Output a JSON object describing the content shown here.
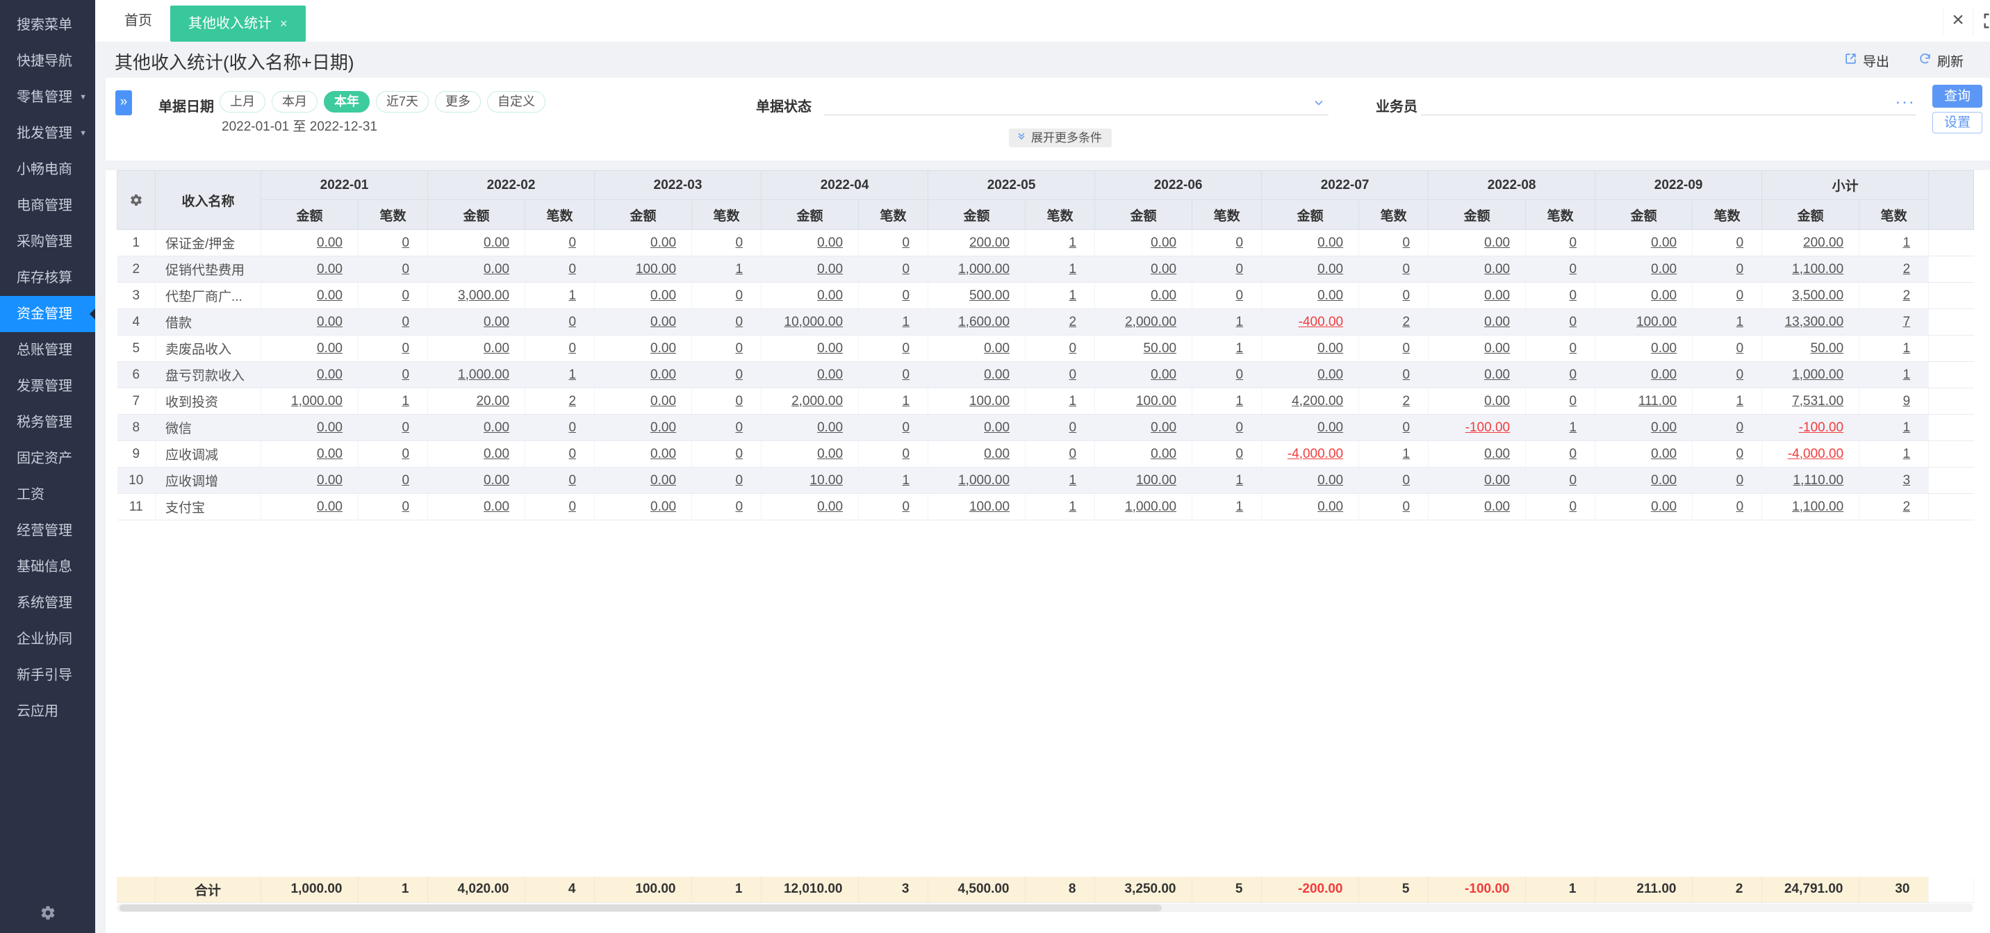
{
  "window": {
    "close_icon": "×"
  },
  "sidebar": {
    "caret_icon": "▼",
    "items": [
      {
        "label": "搜索菜单"
      },
      {
        "label": "快捷导航"
      },
      {
        "label": "零售管理",
        "caret": true
      },
      {
        "label": "批发管理",
        "caret": true
      },
      {
        "label": "小畅电商"
      },
      {
        "label": "电商管理"
      },
      {
        "label": "采购管理"
      },
      {
        "label": "库存核算"
      },
      {
        "label": "资金管理",
        "active": true
      },
      {
        "label": "总账管理"
      },
      {
        "label": "发票管理"
      },
      {
        "label": "税务管理"
      },
      {
        "label": "固定资产"
      },
      {
        "label": "工资"
      },
      {
        "label": "经营管理"
      },
      {
        "label": "基础信息"
      },
      {
        "label": "系统管理"
      },
      {
        "label": "企业协同"
      },
      {
        "label": "新手引导"
      },
      {
        "label": "云应用"
      }
    ]
  },
  "tabs": [
    {
      "label": "首页",
      "active": false,
      "closable": false
    },
    {
      "label": "其他收入统计",
      "active": true,
      "closable": true,
      "close_icon": "×"
    }
  ],
  "page": {
    "title": "其他收入统计(收入名称+日期)"
  },
  "toolbar": {
    "export_label": "导出",
    "refresh_label": "刷新"
  },
  "filters": {
    "collapse_icon": "»",
    "date_label": "单据日期",
    "date_options": [
      {
        "label": "上月"
      },
      {
        "label": "本月"
      },
      {
        "label": "本年",
        "active": true
      },
      {
        "label": "近7天"
      },
      {
        "label": "更多"
      },
      {
        "label": "自定义"
      }
    ],
    "date_from": "2022-01-01",
    "date_separator": "至",
    "date_to": "2022-12-31",
    "status_label": "单据状态",
    "salesman_label": "业务员",
    "ellipsis": "...",
    "query_button": "查询",
    "settings_button": "设置",
    "more_label": "展开更多条件"
  },
  "table": {
    "name_header": "收入名称",
    "groups": [
      "2022-01",
      "2022-02",
      "2022-03",
      "2022-04",
      "2022-05",
      "2022-06",
      "2022-07",
      "2022-08",
      "2022-09",
      "小计"
    ],
    "sub_headers": [
      "金额",
      "笔数"
    ],
    "rows": [
      {
        "no": "1",
        "name": "保证金/押金",
        "cells": [
          [
            "0.00",
            "0"
          ],
          [
            "0.00",
            "0"
          ],
          [
            "0.00",
            "0"
          ],
          [
            "0.00",
            "0"
          ],
          [
            "200.00",
            "1"
          ],
          [
            "0.00",
            "0"
          ],
          [
            "0.00",
            "0"
          ],
          [
            "0.00",
            "0"
          ],
          [
            "0.00",
            "0"
          ],
          [
            "200.00",
            "1"
          ]
        ]
      },
      {
        "no": "2",
        "name": "促销代垫费用",
        "cells": [
          [
            "0.00",
            "0"
          ],
          [
            "0.00",
            "0"
          ],
          [
            "100.00",
            "1"
          ],
          [
            "0.00",
            "0"
          ],
          [
            "1,000.00",
            "1"
          ],
          [
            "0.00",
            "0"
          ],
          [
            "0.00",
            "0"
          ],
          [
            "0.00",
            "0"
          ],
          [
            "0.00",
            "0"
          ],
          [
            "1,100.00",
            "2"
          ]
        ]
      },
      {
        "no": "3",
        "name": "代垫厂商广...",
        "cells": [
          [
            "0.00",
            "0"
          ],
          [
            "3,000.00",
            "1"
          ],
          [
            "0.00",
            "0"
          ],
          [
            "0.00",
            "0"
          ],
          [
            "500.00",
            "1"
          ],
          [
            "0.00",
            "0"
          ],
          [
            "0.00",
            "0"
          ],
          [
            "0.00",
            "0"
          ],
          [
            "0.00",
            "0"
          ],
          [
            "3,500.00",
            "2"
          ]
        ]
      },
      {
        "no": "4",
        "name": "借款",
        "cells": [
          [
            "0.00",
            "0"
          ],
          [
            "0.00",
            "0"
          ],
          [
            "0.00",
            "0"
          ],
          [
            "10,000.00",
            "1"
          ],
          [
            "1,600.00",
            "2"
          ],
          [
            "2,000.00",
            "1"
          ],
          [
            "-400.00",
            "2"
          ],
          [
            "0.00",
            "0"
          ],
          [
            "100.00",
            "1"
          ],
          [
            "13,300.00",
            "7"
          ]
        ]
      },
      {
        "no": "5",
        "name": "卖废品收入",
        "cells": [
          [
            "0.00",
            "0"
          ],
          [
            "0.00",
            "0"
          ],
          [
            "0.00",
            "0"
          ],
          [
            "0.00",
            "0"
          ],
          [
            "0.00",
            "0"
          ],
          [
            "50.00",
            "1"
          ],
          [
            "0.00",
            "0"
          ],
          [
            "0.00",
            "0"
          ],
          [
            "0.00",
            "0"
          ],
          [
            "50.00",
            "1"
          ]
        ]
      },
      {
        "no": "6",
        "name": "盘亏罚款收入",
        "cells": [
          [
            "0.00",
            "0"
          ],
          [
            "1,000.00",
            "1"
          ],
          [
            "0.00",
            "0"
          ],
          [
            "0.00",
            "0"
          ],
          [
            "0.00",
            "0"
          ],
          [
            "0.00",
            "0"
          ],
          [
            "0.00",
            "0"
          ],
          [
            "0.00",
            "0"
          ],
          [
            "0.00",
            "0"
          ],
          [
            "1,000.00",
            "1"
          ]
        ]
      },
      {
        "no": "7",
        "name": "收到投资",
        "cells": [
          [
            "1,000.00",
            "1"
          ],
          [
            "20.00",
            "2"
          ],
          [
            "0.00",
            "0"
          ],
          [
            "2,000.00",
            "1"
          ],
          [
            "100.00",
            "1"
          ],
          [
            "100.00",
            "1"
          ],
          [
            "4,200.00",
            "2"
          ],
          [
            "0.00",
            "0"
          ],
          [
            "111.00",
            "1"
          ],
          [
            "7,531.00",
            "9"
          ]
        ]
      },
      {
        "no": "8",
        "name": "微信",
        "cells": [
          [
            "0.00",
            "0"
          ],
          [
            "0.00",
            "0"
          ],
          [
            "0.00",
            "0"
          ],
          [
            "0.00",
            "0"
          ],
          [
            "0.00",
            "0"
          ],
          [
            "0.00",
            "0"
          ],
          [
            "0.00",
            "0"
          ],
          [
            "-100.00",
            "1"
          ],
          [
            "0.00",
            "0"
          ],
          [
            "-100.00",
            "1"
          ]
        ]
      },
      {
        "no": "9",
        "name": "应收调减",
        "cells": [
          [
            "0.00",
            "0"
          ],
          [
            "0.00",
            "0"
          ],
          [
            "0.00",
            "0"
          ],
          [
            "0.00",
            "0"
          ],
          [
            "0.00",
            "0"
          ],
          [
            "0.00",
            "0"
          ],
          [
            "-4,000.00",
            "1"
          ],
          [
            "0.00",
            "0"
          ],
          [
            "0.00",
            "0"
          ],
          [
            "-4,000.00",
            "1"
          ]
        ]
      },
      {
        "no": "10",
        "name": "应收调增",
        "cells": [
          [
            "0.00",
            "0"
          ],
          [
            "0.00",
            "0"
          ],
          [
            "0.00",
            "0"
          ],
          [
            "10.00",
            "1"
          ],
          [
            "1,000.00",
            "1"
          ],
          [
            "100.00",
            "1"
          ],
          [
            "0.00",
            "0"
          ],
          [
            "0.00",
            "0"
          ],
          [
            "0.00",
            "0"
          ],
          [
            "1,110.00",
            "3"
          ]
        ]
      },
      {
        "no": "11",
        "name": "支付宝",
        "cells": [
          [
            "0.00",
            "0"
          ],
          [
            "0.00",
            "0"
          ],
          [
            "0.00",
            "0"
          ],
          [
            "0.00",
            "0"
          ],
          [
            "100.00",
            "1"
          ],
          [
            "1,000.00",
            "1"
          ],
          [
            "0.00",
            "0"
          ],
          [
            "0.00",
            "0"
          ],
          [
            "0.00",
            "0"
          ],
          [
            "1,100.00",
            "2"
          ]
        ]
      }
    ],
    "footer": {
      "label": "合计",
      "cells": [
        [
          "1,000.00",
          "1"
        ],
        [
          "4,020.00",
          "4"
        ],
        [
          "100.00",
          "1"
        ],
        [
          "12,010.00",
          "3"
        ],
        [
          "4,500.00",
          "8"
        ],
        [
          "3,250.00",
          "5"
        ],
        [
          "-200.00",
          "5"
        ],
        [
          "-100.00",
          "1"
        ],
        [
          "211.00",
          "2"
        ],
        [
          "24,791.00",
          "30"
        ]
      ]
    }
  },
  "colors": {
    "sidebar_bg": "#2c3245",
    "sidebar_active": "#1890ff",
    "tab_active_green": "#38c89c",
    "accent_blue": "#5d97f5",
    "negative_red": "#f23c3c",
    "table_header_bg": "#e9ebf2",
    "footer_bg": "#fcf2da"
  }
}
